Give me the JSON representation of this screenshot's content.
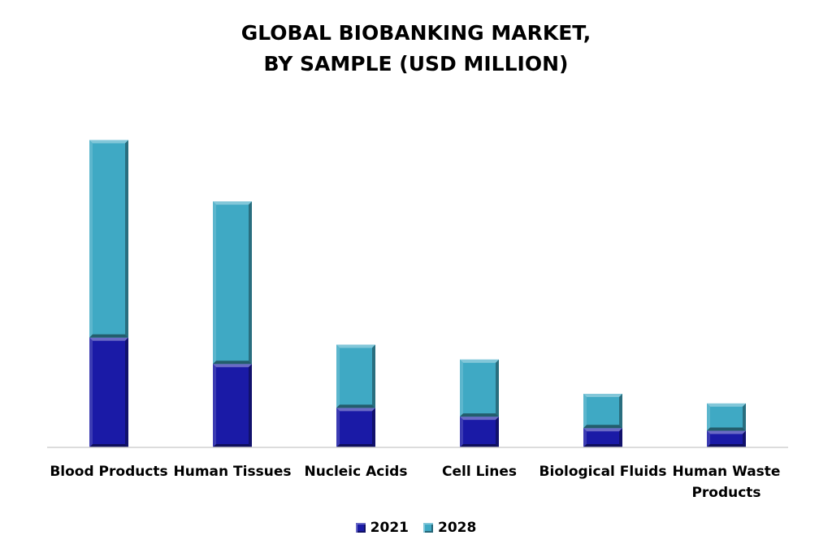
{
  "chart_data": {
    "type": "bar",
    "stacked": true,
    "title_lines": [
      "GLOBAL BIOBANKING MARKET,",
      "BY SAMPLE (USD MILLION)"
    ],
    "xlabel": "",
    "ylabel": "",
    "categories": [
      [
        "Blood Products"
      ],
      [
        "Human Tissues"
      ],
      [
        "Nucleic Acids"
      ],
      [
        "Cell Lines"
      ],
      [
        "Biological Fluids"
      ],
      [
        "Human Waste",
        "Products"
      ]
    ],
    "series": [
      {
        "name": "2021",
        "color": "#1a1aa6",
        "values": [
          125,
          95,
          45,
          35,
          22,
          19
        ]
      },
      {
        "name": "2028",
        "color": "#3fa9c4",
        "values": [
          225,
          185,
          72,
          65,
          39,
          31
        ]
      }
    ],
    "ylim": [
      0,
      380
    ],
    "grid": false,
    "legend_position": "bottom"
  }
}
